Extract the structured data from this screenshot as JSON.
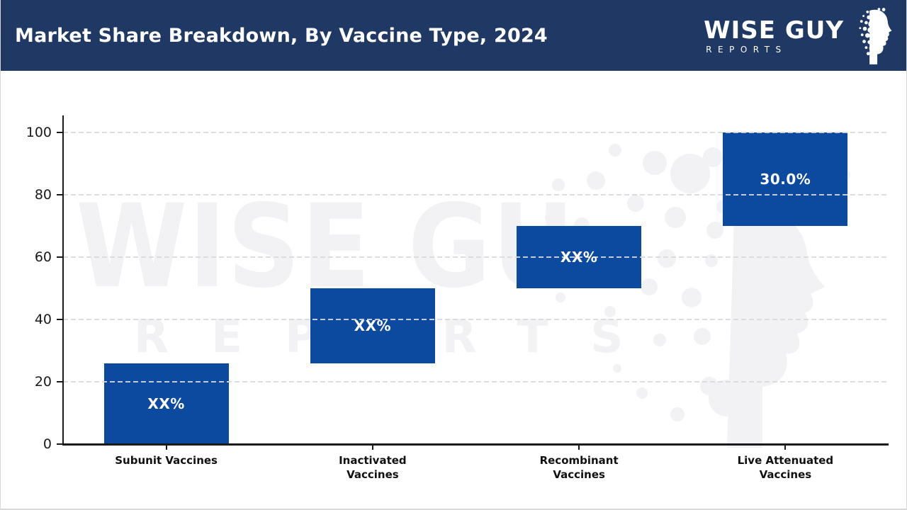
{
  "header": {
    "title": "Market Share Breakdown, By Vaccine Type, 2024",
    "logo": {
      "wordmark": "WISE GUY",
      "subtext": "REPORTS"
    }
  },
  "watermark": {
    "wordmark": "WISE GU",
    "subtext": "REPORTS"
  },
  "chart_data": {
    "type": "bar",
    "variant": "waterfall",
    "title": "Market Share Breakdown, By Vaccine Type, 2024",
    "categories": [
      "Subunit Vaccines",
      "Inactivated Vaccines",
      "Recombinant Vaccines",
      "Live Attenuated Vaccines"
    ],
    "category_lines": [
      [
        "Subunit Vaccines"
      ],
      [
        "Inactivated",
        "Vaccines"
      ],
      [
        "Recombinant",
        "Vaccines"
      ],
      [
        "Live Attenuated",
        "Vaccines"
      ]
    ],
    "series": [
      {
        "name": "Market share (%)",
        "segments": [
          {
            "category": "Subunit Vaccines",
            "start": 0,
            "end": 26,
            "label": "XX%"
          },
          {
            "category": "Inactivated Vaccines",
            "start": 26,
            "end": 50,
            "label": "XX%"
          },
          {
            "category": "Recombinant Vaccines",
            "start": 50,
            "end": 70,
            "label": "XX%"
          },
          {
            "category": "Live Attenuated Vaccines",
            "start": 70,
            "end": 100,
            "label": "30.0%"
          }
        ]
      }
    ],
    "xlabel": "",
    "ylabel": "",
    "yticks": [
      0,
      20,
      40,
      60,
      80,
      100
    ],
    "ylim": [
      0,
      105.5
    ],
    "grid": "horizontal-dashed",
    "legend": "none",
    "colors": {
      "header_bg": "#1f3864",
      "bar": "#0b4a9e",
      "bar_label": "#ffffff",
      "grid": "#d9d9d9",
      "axis": "#1a1a1a",
      "text": "#111111",
      "watermark": "#f2f2f4"
    }
  }
}
